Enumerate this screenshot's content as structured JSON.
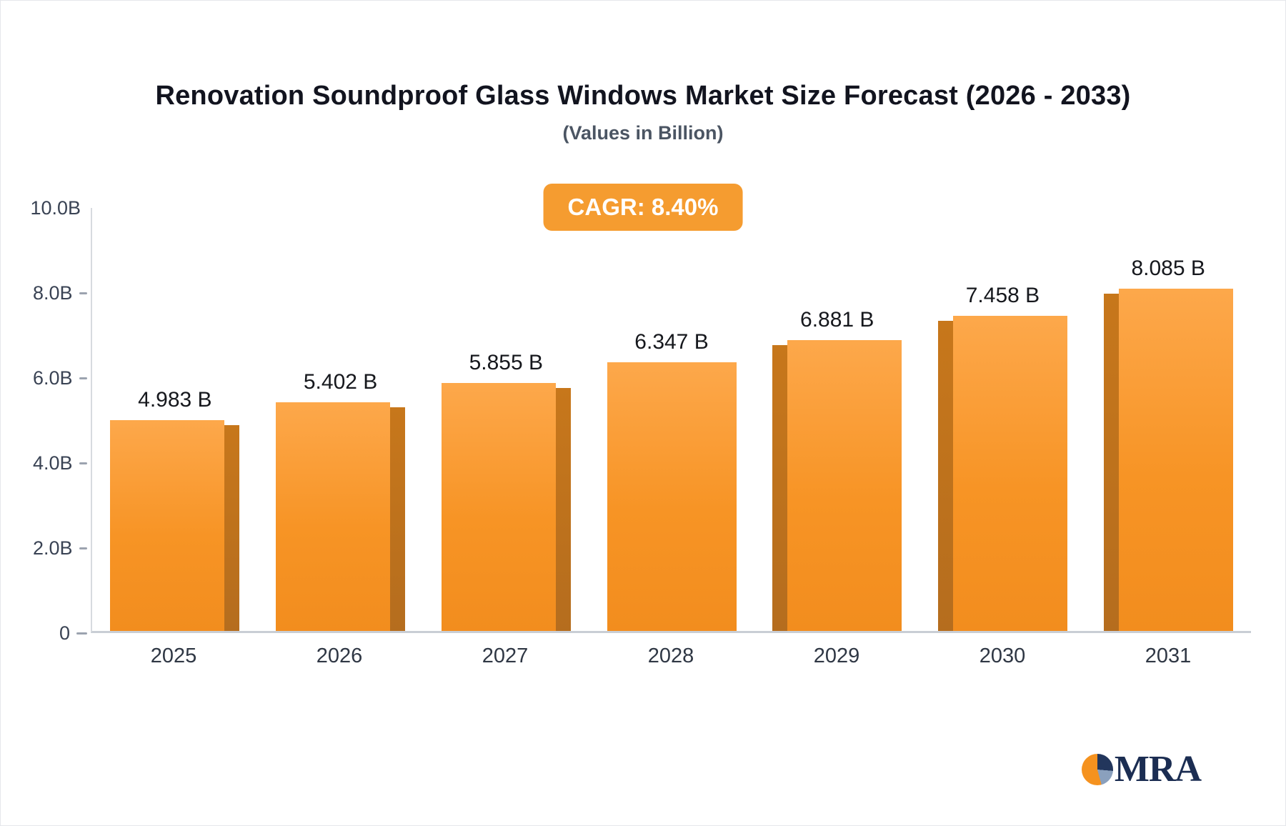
{
  "header": {
    "title": "Renovation Soundproof Glass Windows Market Size Forecast (2026 - 2033)",
    "subtitle": "(Values in Billion)",
    "cagr_badge": "CAGR: 8.40%"
  },
  "chart_data": {
    "type": "bar",
    "categories": [
      "2025",
      "2026",
      "2027",
      "2028",
      "2029",
      "2030",
      "2031"
    ],
    "values": [
      4.983,
      5.402,
      5.855,
      6.347,
      6.881,
      7.458,
      8.085
    ],
    "value_labels": [
      "4.983 B",
      "5.402 B",
      "5.855 B",
      "6.347 B",
      "6.881 B",
      "7.458 B",
      "8.085 B"
    ],
    "title": "Renovation Soundproof Glass Windows Market Size Forecast (2026 - 2033)",
    "subtitle": "(Values in Billion)",
    "cagr_label": "CAGR: 8.40%",
    "xlabel": "",
    "ylabel": "",
    "ylim": [
      0,
      10
    ],
    "y_ticks": [
      "10.0B",
      "8.0B",
      "6.0B",
      "4.0B",
      "2.0B",
      "0"
    ],
    "grid": false,
    "legend": "none",
    "bar_color": "#f79425",
    "bar_side_color": "#b56d1e",
    "accent_color": "#f59c30"
  },
  "logo": {
    "text": "MRA"
  }
}
